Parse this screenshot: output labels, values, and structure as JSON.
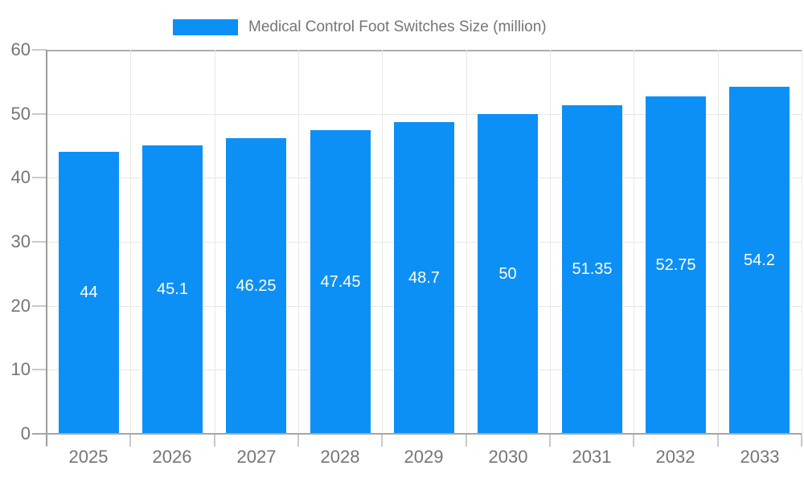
{
  "chart_data": {
    "type": "bar",
    "title": "Medical Control Foot Switches Size (million)",
    "categories": [
      "2025",
      "2026",
      "2027",
      "2028",
      "2029",
      "2030",
      "2031",
      "2032",
      "2033"
    ],
    "values": [
      44,
      45.1,
      46.25,
      47.45,
      48.7,
      50,
      51.35,
      52.75,
      54.2
    ],
    "value_labels": [
      "44",
      "45.1",
      "46.25",
      "47.45",
      "48.7",
      "50",
      "51.35",
      "52.75",
      "54.2"
    ],
    "xlabel": "",
    "ylabel": "",
    "ylim": [
      0,
      60
    ],
    "y_ticks": [
      0,
      10,
      20,
      30,
      40,
      50,
      60
    ],
    "grid": true,
    "legend_position": "top-center",
    "colors": {
      "bar": "#0d90f5",
      "value_label": "#ffffff",
      "axis_text": "#757575",
      "grid_line": "#e8e8e8",
      "axis_line": "#a6a6a6",
      "tick": "#c9c9c9",
      "background": "#ffffff"
    }
  }
}
